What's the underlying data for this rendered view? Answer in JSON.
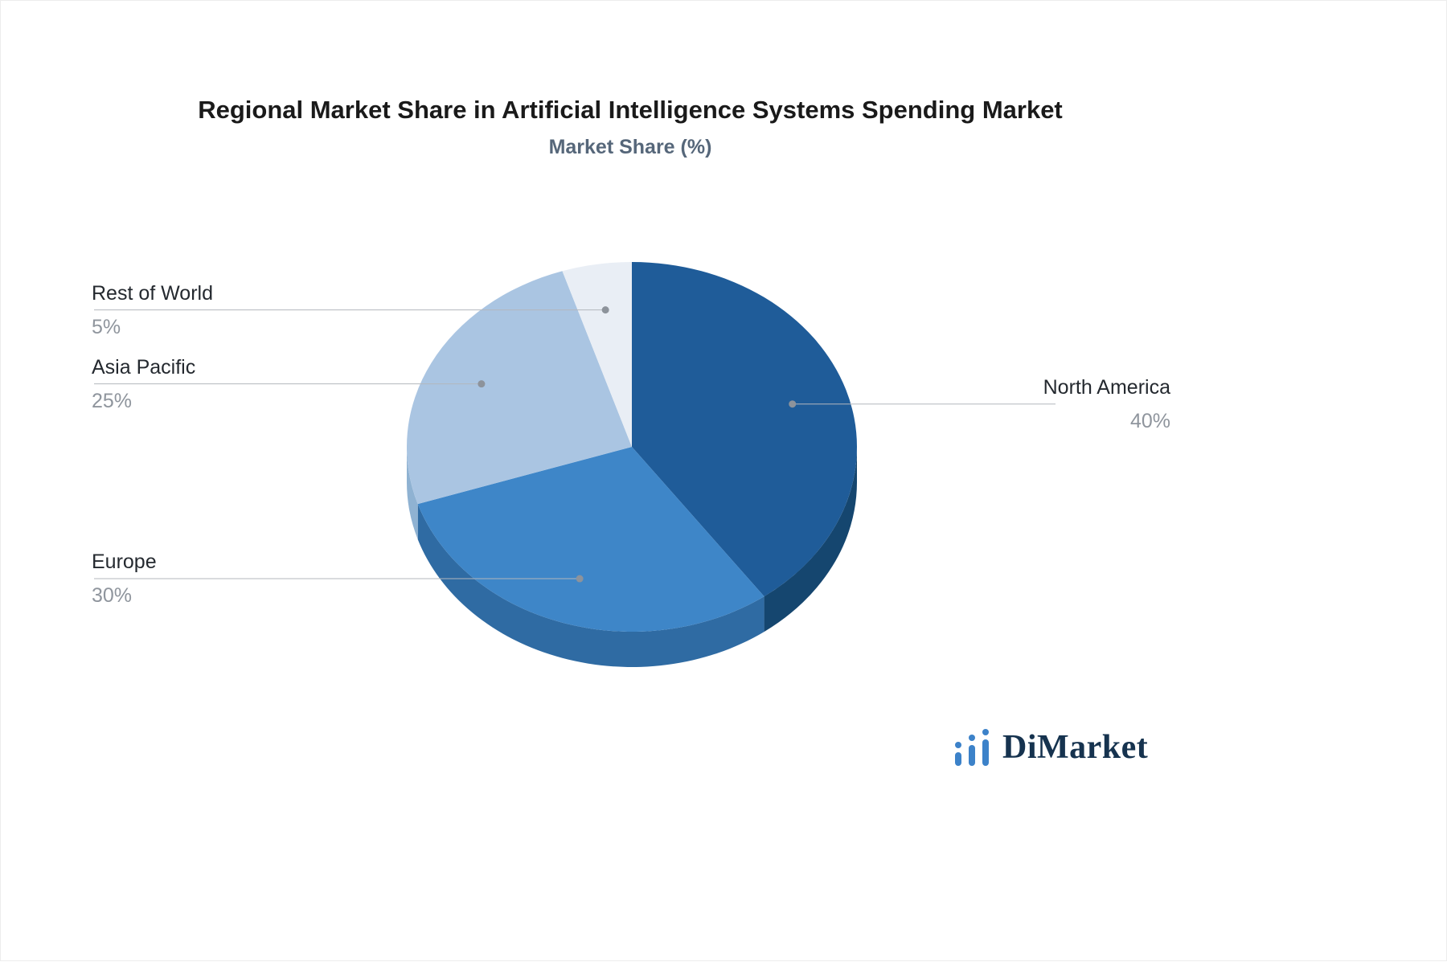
{
  "chart_data": {
    "type": "pie",
    "title": "Regional Market Share in Artificial Intelligence Systems Spending Market",
    "subtitle": "Market Share (%)",
    "unit": "%",
    "categories": [
      "North America",
      "Europe",
      "Asia Pacific",
      "Rest of World"
    ],
    "values": [
      40,
      30,
      25,
      5
    ],
    "value_labels": [
      "40%",
      "30%",
      "25%",
      "5%"
    ],
    "colors": [
      "#1f5c99",
      "#3e86c8",
      "#aac5e2",
      "#e9eef5"
    ],
    "side_colors": [
      "#15466f",
      "#2f6ba3",
      "#8fb2d2",
      "#c9d4e0"
    ],
    "start_angle_deg": 0,
    "direction": "clockwise",
    "style": "3d",
    "legend": "none",
    "label_style": "callout-lines"
  },
  "callouts": [
    {
      "label": "North America",
      "value": "40%",
      "side": "right"
    },
    {
      "label": "Europe",
      "value": "30%",
      "side": "left"
    },
    {
      "label": "Asia Pacific",
      "value": "25%",
      "side": "left"
    },
    {
      "label": "Rest of World",
      "value": "5%",
      "side": "left"
    }
  ],
  "branding": {
    "name": "DiMarket",
    "icon": "bar-chart-logo-icon",
    "text_color": "#16334f",
    "icon_color": "#3c82c9"
  }
}
